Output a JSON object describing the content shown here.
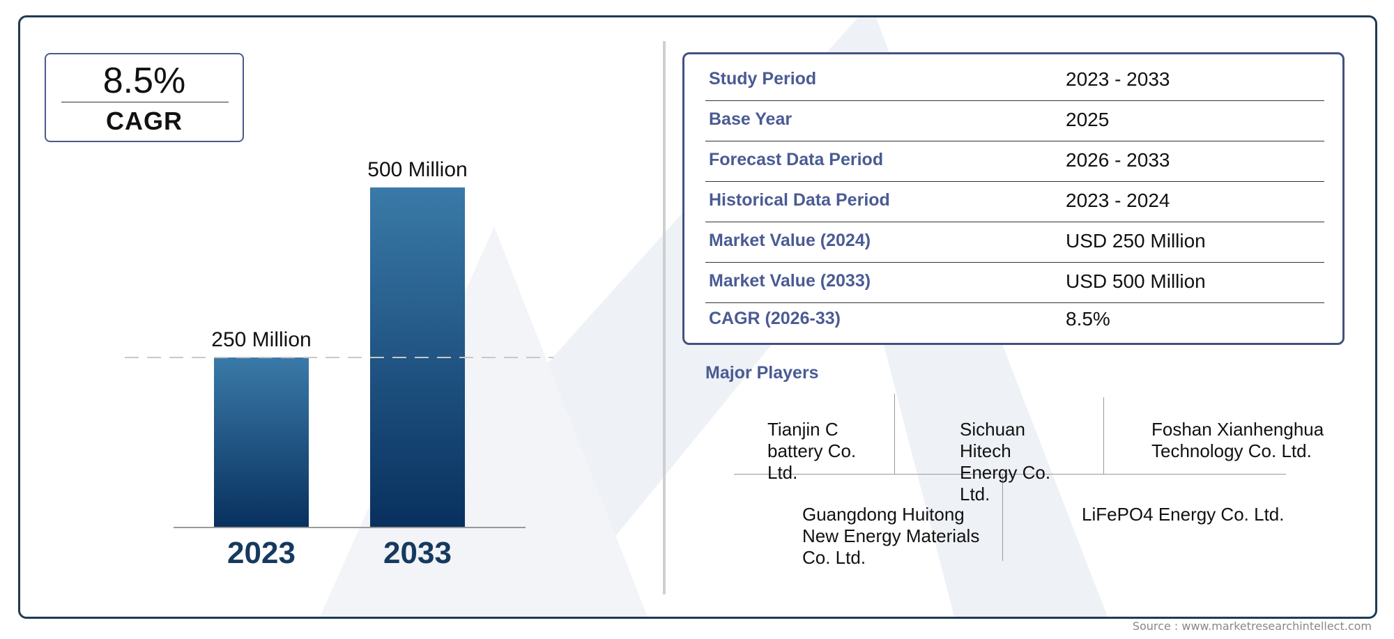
{
  "colors": {
    "frame": "#1f3a52",
    "bar_top": "#3a7aa8",
    "bar_bottom": "#08305e",
    "label_blue": "#4a5b94",
    "year_blue": "#163a5f",
    "watermark": "#eef1f6"
  },
  "cagr_box": {
    "value": "8.5%",
    "label": "CAGR"
  },
  "chart_data": {
    "type": "bar",
    "categories": [
      "2023",
      "2033"
    ],
    "values": [
      250,
      500
    ],
    "data_labels": [
      "250 Million",
      "500 Million"
    ],
    "ylim": [
      0,
      500
    ],
    "reference_line": 250,
    "title": "",
    "xlabel": "",
    "ylabel": "",
    "grid": false
  },
  "info_table": {
    "rows": [
      {
        "label": "Study Period",
        "value": "2023 - 2033"
      },
      {
        "label": "Base Year",
        "value": "2025"
      },
      {
        "label": "Forecast Data Period",
        "value": "2026 - 2033"
      },
      {
        "label": "Historical Data Period",
        "value": "2023 - 2024"
      },
      {
        "label": "Market Value (2024)",
        "value": "USD 250 Million"
      },
      {
        "label": "Market Value (2033)",
        "value": "USD 500 Million"
      },
      {
        "label": "CAGR (2026-33)",
        "value": "8.5%"
      }
    ]
  },
  "players": {
    "title": "Major Players",
    "list": [
      "Tianjin C battery Co. Ltd.",
      "Sichuan Hitech Energy Co. Ltd.",
      "Foshan Xianhenghua Technology Co. Ltd.",
      "Guangdong Huitong New Energy Materials Co. Ltd.",
      "LiFePO4 Energy Co. Ltd."
    ]
  },
  "source": "Source : www.marketresearchintellect.com"
}
